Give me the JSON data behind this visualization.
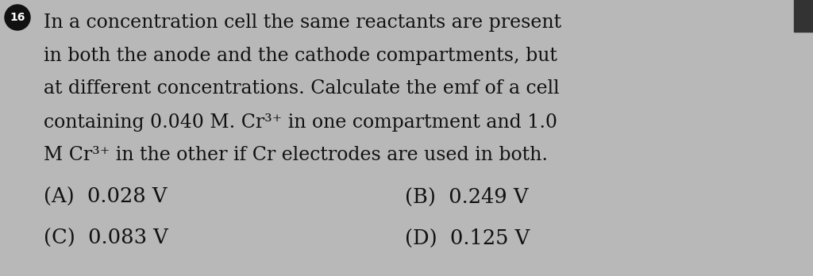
{
  "background_color": "#b8b8b8",
  "question_number": "16",
  "question_text_lines": [
    "In a concentration cell the same reactants are present",
    "in both the anode and the cathode compartments, but",
    "at different concentrations. Calculate the emf of a cell",
    "containing 0.040 M. Cr³⁺ in one compartment and 1.0",
    "M Cr³⁺ in the other if Cr electrodes are used in both."
  ],
  "options": [
    [
      "(A)  0.028 V",
      "(B)  0.249 V"
    ],
    [
      "(C)  0.083 V",
      "(D)  0.125 V"
    ]
  ],
  "font_size_question": 17.0,
  "font_size_options": 18.5,
  "text_color": "#111111",
  "circle_color": "#111111",
  "right_corner_color": "#333333"
}
